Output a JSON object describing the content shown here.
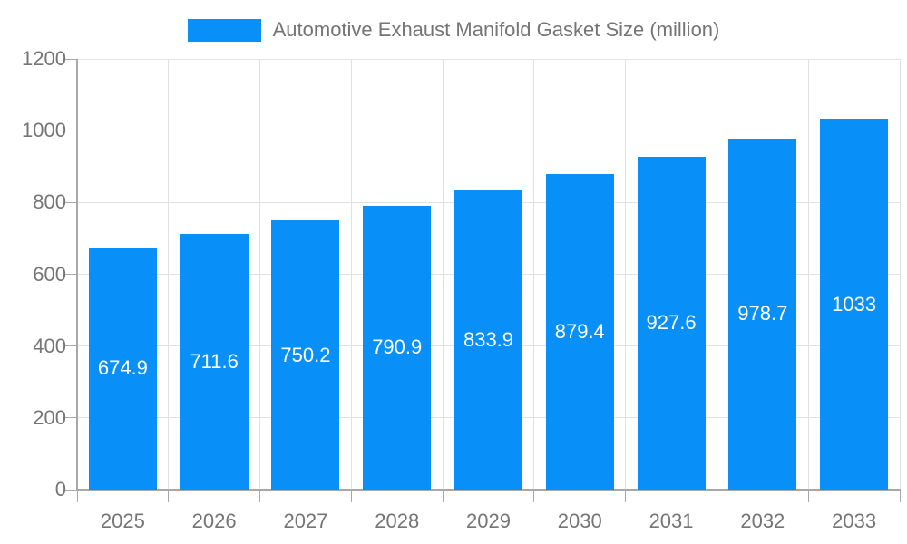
{
  "chart_data": {
    "type": "bar",
    "title": "Automotive Exhaust Manifold Gasket Size (million)",
    "categories": [
      "2025",
      "2026",
      "2027",
      "2028",
      "2029",
      "2030",
      "2031",
      "2032",
      "2033"
    ],
    "values": [
      674.9,
      711.6,
      750.2,
      790.9,
      833.9,
      879.4,
      927.6,
      978.7,
      1033
    ],
    "value_labels": [
      "674.9",
      "711.6",
      "750.2",
      "790.9",
      "833.9",
      "879.4",
      "927.6",
      "978.7",
      "1033"
    ],
    "xlabel": "",
    "ylabel": "",
    "ylim": [
      0,
      1200
    ],
    "yticks": [
      0,
      200,
      400,
      600,
      800,
      1000,
      1200
    ],
    "grid": true,
    "legend_position": "top-center",
    "bar_color": "#0990f8",
    "bar_label_color": "#ffffff",
    "axis_text_color": "#757575",
    "grid_color": "#e2e2e2",
    "axis_line_color": "#a8a8a8"
  }
}
